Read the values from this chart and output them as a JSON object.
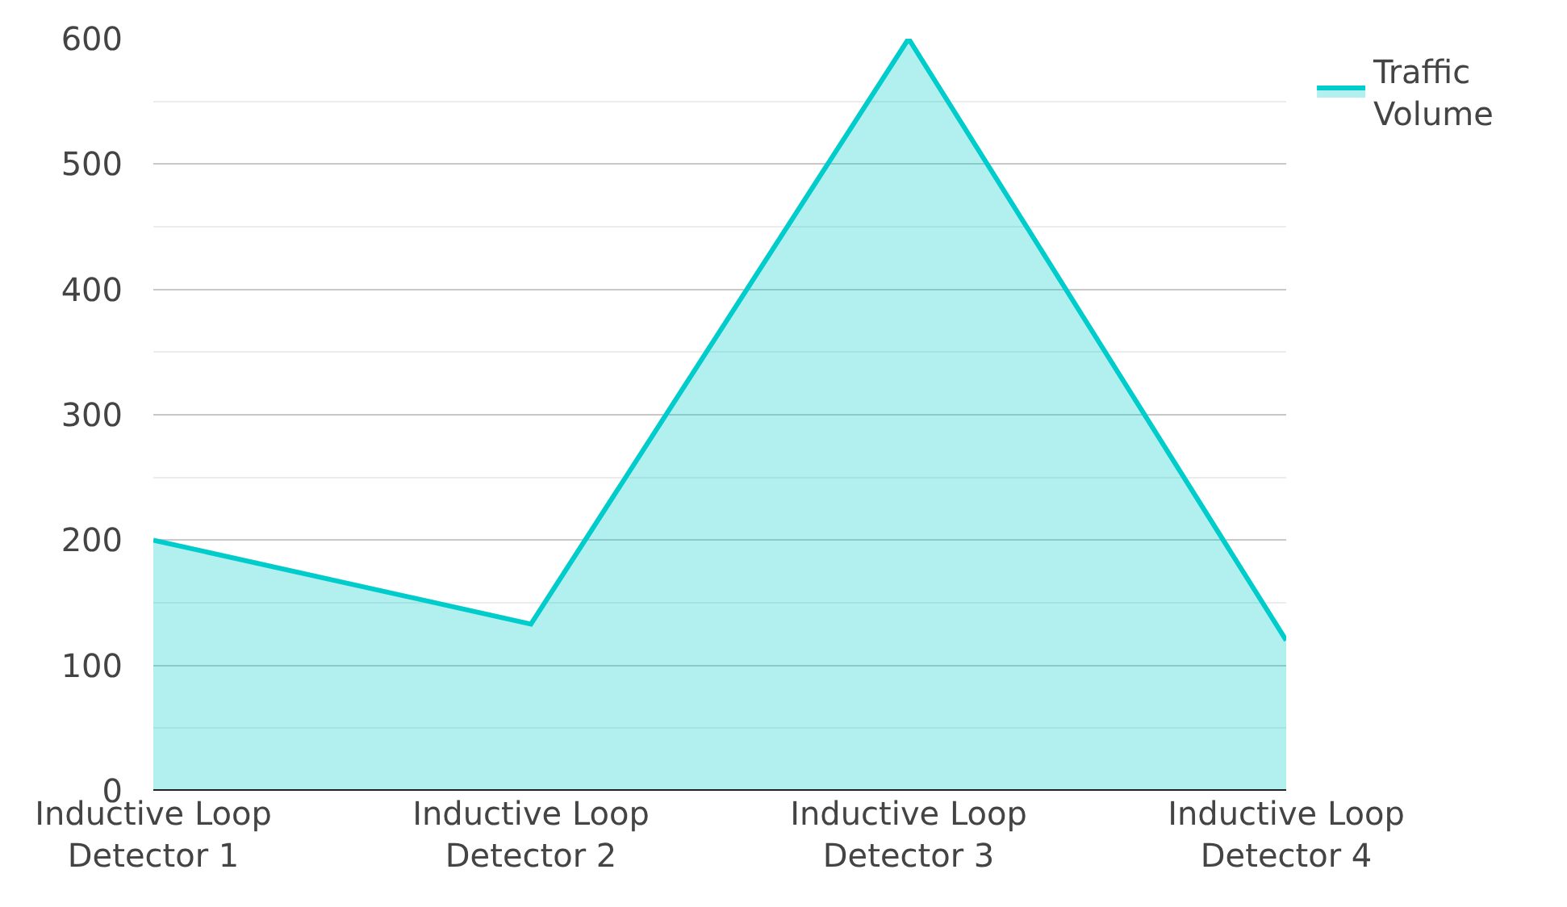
{
  "chart_data": {
    "type": "area",
    "categories": [
      "Inductive Loop Detector 1",
      "Inductive Loop Detector 2",
      "Inductive Loop Detector 3",
      "Inductive Loop Detector 4"
    ],
    "series": [
      {
        "name": "Traffic Volume",
        "color": "#00cccc",
        "values": [
          200,
          133,
          600,
          120
        ]
      }
    ],
    "ylim": [
      0,
      600
    ],
    "yticks": [
      0,
      100,
      200,
      300,
      400,
      500,
      600
    ],
    "grid": "y",
    "legend": "top right"
  }
}
